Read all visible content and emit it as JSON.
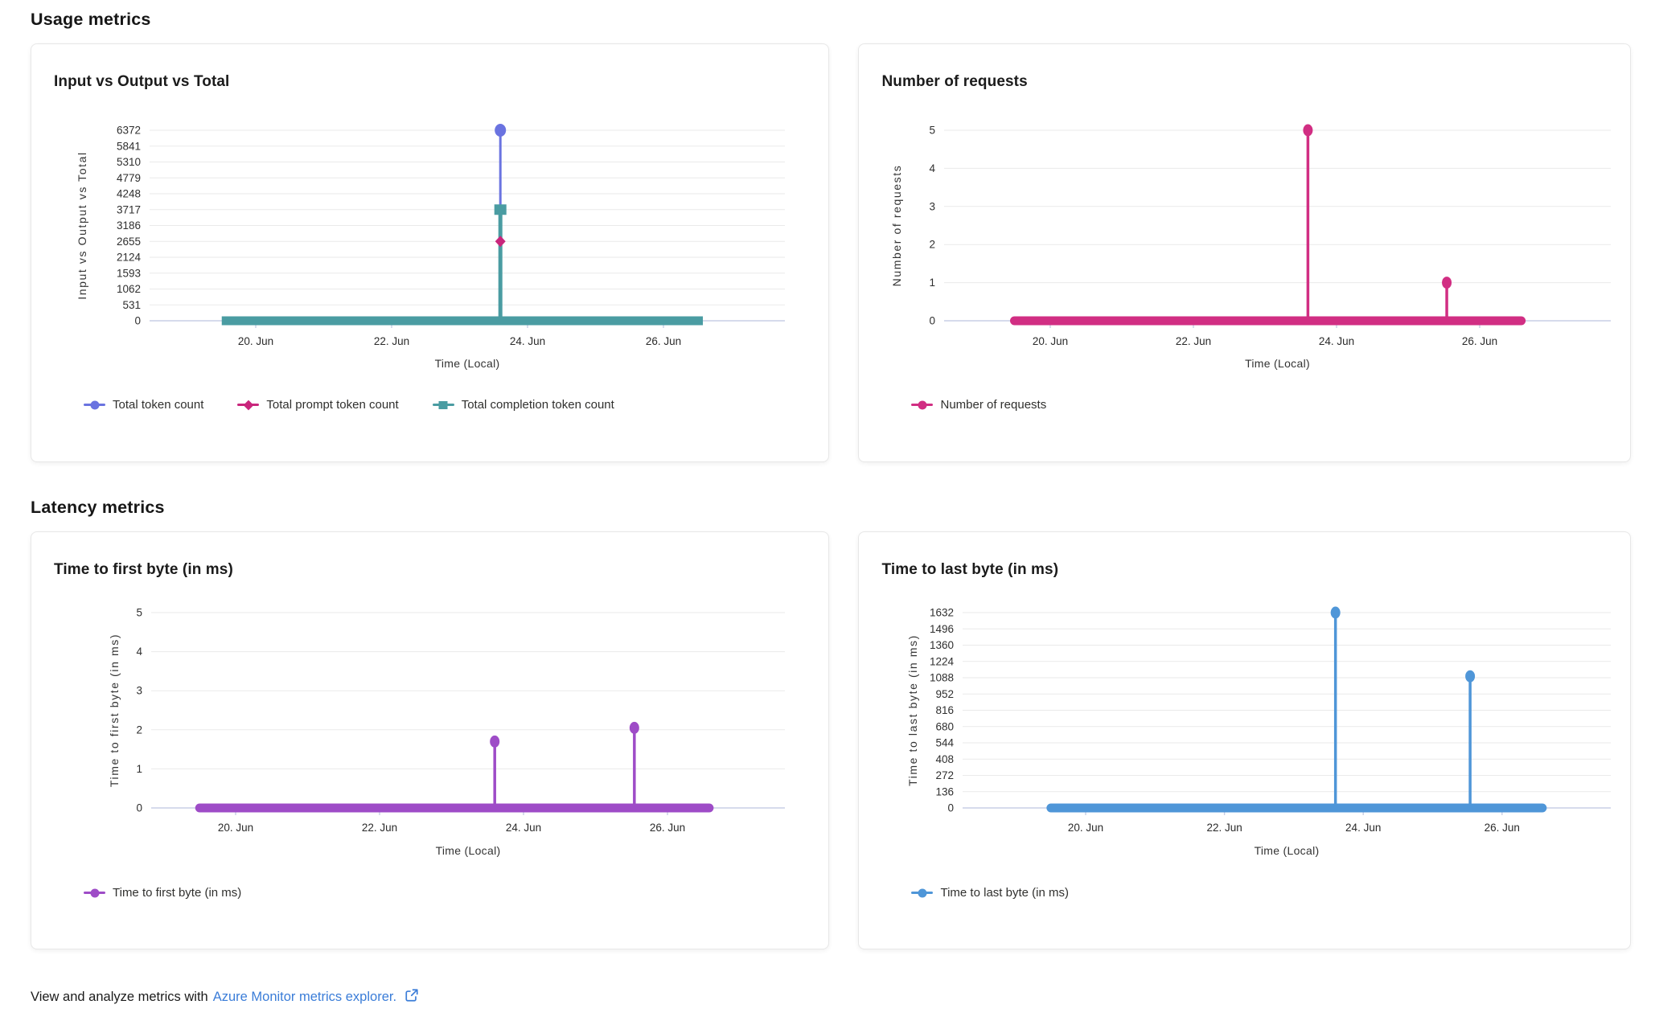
{
  "page": {
    "usage_heading": "Usage metrics",
    "latency_heading": "Latency metrics",
    "footer_text": "View and analyze metrics with",
    "footer_link": "Azure Monitor metrics explorer.",
    "link_color": "#3b7dd8",
    "grid_color": "#eaeaea",
    "zero_line_color": "#c8cfe6"
  },
  "chart_data": [
    {
      "type": "line",
      "title": "Input vs Output vs Total",
      "xlabel": "Time (Local)",
      "ylabel": "Input vs Output vs Total",
      "ylim": [
        0,
        6372
      ],
      "yticks": [
        0,
        531,
        1062,
        1593,
        2124,
        2655,
        3186,
        3717,
        4248,
        4779,
        5310,
        5841,
        6372
      ],
      "xticks": [
        {
          "v": 20,
          "label": "20. Jun"
        },
        {
          "v": 22,
          "label": "22. Jun"
        },
        {
          "v": 24,
          "label": "24. Jun"
        },
        {
          "v": 26,
          "label": "26. Jun"
        }
      ],
      "baseline": {
        "start": 19.5,
        "end": 26.58,
        "value": 0,
        "color": "#4A9CA2",
        "cap": "butt"
      },
      "series": [
        {
          "name": "Total token count",
          "color": "#6A73E0",
          "marker": "circle",
          "stem_width": 3,
          "data": [
            {
              "x": 23.6,
              "y": 6372
            }
          ]
        },
        {
          "name": "Total prompt token count",
          "color": "#C9267C",
          "marker": "diamond",
          "stem_width": 2,
          "data": [
            {
              "x": 23.6,
              "y": 2655
            }
          ]
        },
        {
          "name": "Total completion token count",
          "color": "#4A9CA2",
          "marker": "square",
          "stem_width": 5,
          "data": [
            {
              "x": 23.6,
              "y": 3717
            }
          ]
        }
      ]
    },
    {
      "type": "line",
      "title": "Number of requests",
      "xlabel": "Time (Local)",
      "ylabel": "Number of requests",
      "ylim": [
        0,
        5
      ],
      "yticks": [
        0,
        1,
        2,
        3,
        4,
        5
      ],
      "xticks": [
        {
          "v": 20,
          "label": "20. Jun"
        },
        {
          "v": 22,
          "label": "22. Jun"
        },
        {
          "v": 24,
          "label": "24. Jun"
        },
        {
          "v": 26,
          "label": "26. Jun"
        }
      ],
      "baseline": {
        "start": 19.5,
        "end": 26.58,
        "value": 0,
        "color": "#D12E83",
        "cap": "round"
      },
      "series": [
        {
          "name": "Number of requests",
          "color": "#D12E83",
          "marker": "circle",
          "stem_width": 3.5,
          "data": [
            {
              "x": 23.6,
              "y": 5
            },
            {
              "x": 25.54,
              "y": 1
            }
          ]
        }
      ]
    },
    {
      "type": "line",
      "title": "Time to first byte (in ms)",
      "xlabel": "Time (Local)",
      "ylabel": "Time to first byte (in ms)",
      "ylim": [
        0,
        5
      ],
      "yticks": [
        0,
        1,
        2,
        3,
        4,
        5
      ],
      "xticks": [
        {
          "v": 20,
          "label": "20. Jun"
        },
        {
          "v": 22,
          "label": "22. Jun"
        },
        {
          "v": 24,
          "label": "24. Jun"
        },
        {
          "v": 26,
          "label": "26. Jun"
        }
      ],
      "baseline": {
        "start": 19.5,
        "end": 26.58,
        "value": 0,
        "color": "#9E4CC7",
        "cap": "round"
      },
      "series": [
        {
          "name": "Time to first byte (in ms)",
          "color": "#9E4CC7",
          "marker": "circle",
          "stem_width": 3.5,
          "data": [
            {
              "x": 23.6,
              "y": 1.7
            },
            {
              "x": 25.54,
              "y": 2.05
            }
          ]
        }
      ]
    },
    {
      "type": "line",
      "title": "Time to last byte (in ms)",
      "xlabel": "Time (Local)",
      "ylabel": "Time to last byte (in ms)",
      "ylim": [
        0,
        1632
      ],
      "yticks": [
        0,
        136,
        272,
        408,
        544,
        680,
        816,
        952,
        1088,
        1224,
        1360,
        1496,
        1632
      ],
      "xticks": [
        {
          "v": 20,
          "label": "20. Jun"
        },
        {
          "v": 22,
          "label": "22. Jun"
        },
        {
          "v": 24,
          "label": "24. Jun"
        },
        {
          "v": 26,
          "label": "26. Jun"
        }
      ],
      "baseline": {
        "start": 19.5,
        "end": 26.58,
        "value": 0,
        "color": "#4F96D8",
        "cap": "round"
      },
      "series": [
        {
          "name": "Time to last byte (in ms)",
          "color": "#4F96D8",
          "marker": "circle",
          "stem_width": 3.5,
          "data": [
            {
              "x": 23.6,
              "y": 1632
            },
            {
              "x": 25.54,
              "y": 1100
            }
          ]
        }
      ]
    }
  ]
}
